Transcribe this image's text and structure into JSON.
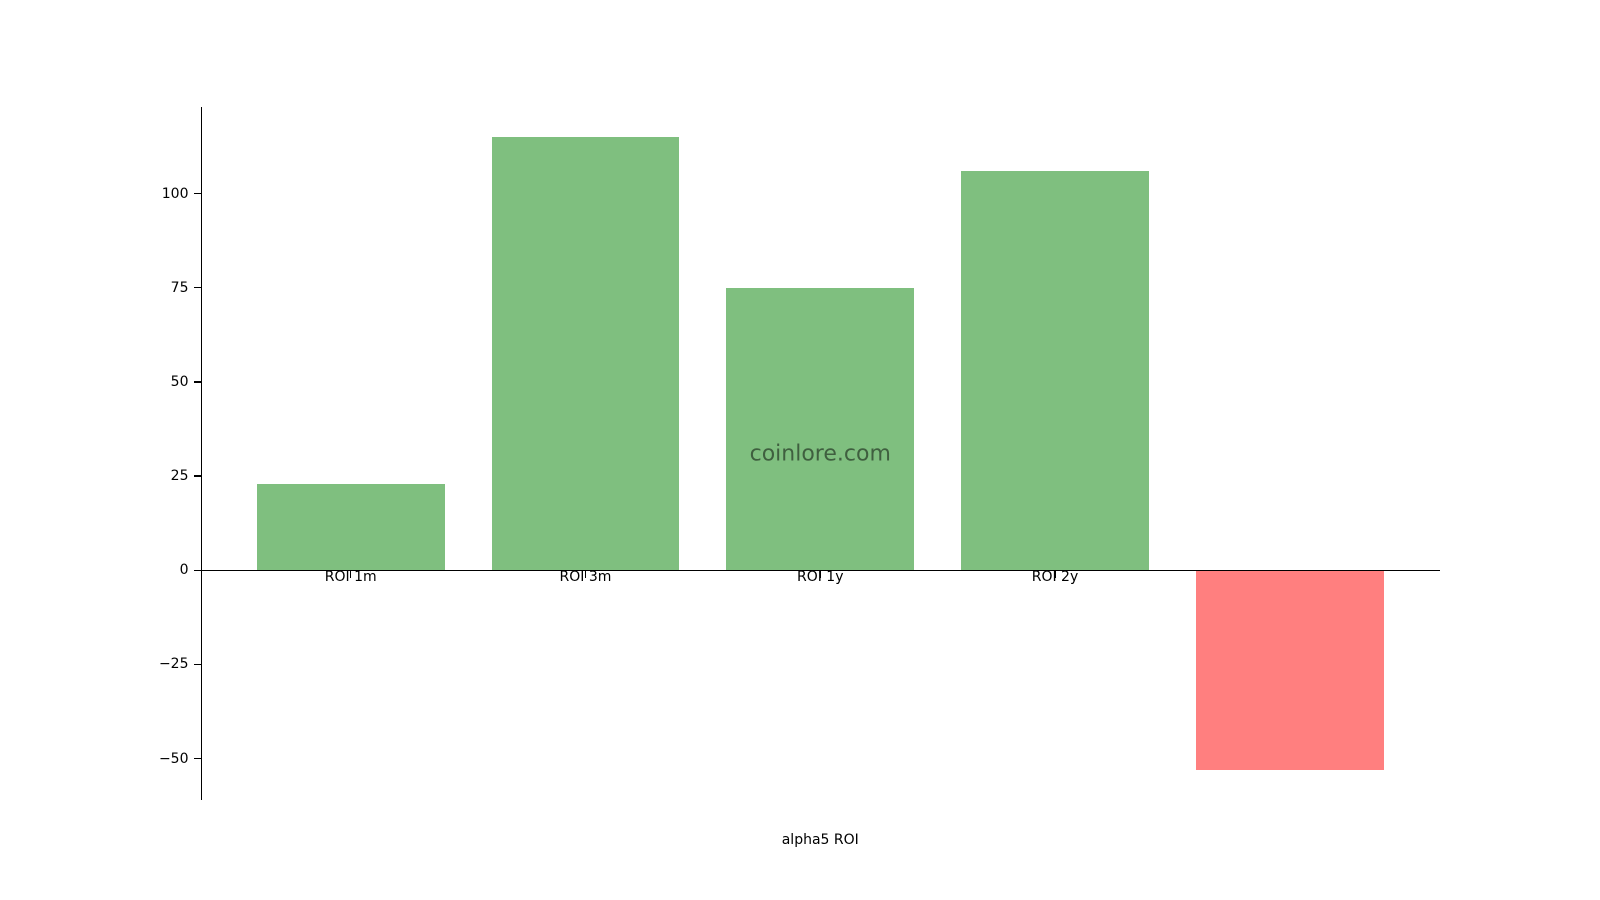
{
  "chart_data": {
    "type": "bar",
    "title": "",
    "xlabel": "alpha5 ROI",
    "ylabel": "",
    "categories": [
      "ROI 1m",
      "ROI 3m",
      "ROI 1y",
      "ROI 2y",
      ""
    ],
    "values": [
      23,
      115,
      75,
      106,
      -53
    ],
    "series_note": "single series; fifth category tick label hidden behind negative bar",
    "ylim": [
      -61,
      123
    ],
    "xlim": [
      -0.64,
      4.64
    ],
    "bar_width_units": 0.8,
    "yticks": [
      {
        "value": 100,
        "label": "100"
      },
      {
        "value": 75,
        "label": "75"
      },
      {
        "value": 50,
        "label": "50"
      },
      {
        "value": 25,
        "label": "25"
      },
      {
        "value": 0,
        "label": "0"
      },
      {
        "value": -25,
        "label": "−25"
      },
      {
        "value": -50,
        "label": "−50"
      }
    ],
    "grid": false,
    "legend": null,
    "colors": {
      "positive_bar": "#7fbf7f",
      "negative_bar": "#ff7f7f",
      "axis": "#000000",
      "background": "#ffffff"
    }
  },
  "watermark": {
    "text": "coinlore.com"
  },
  "footer": {
    "xlabel": "alpha5 ROI"
  }
}
